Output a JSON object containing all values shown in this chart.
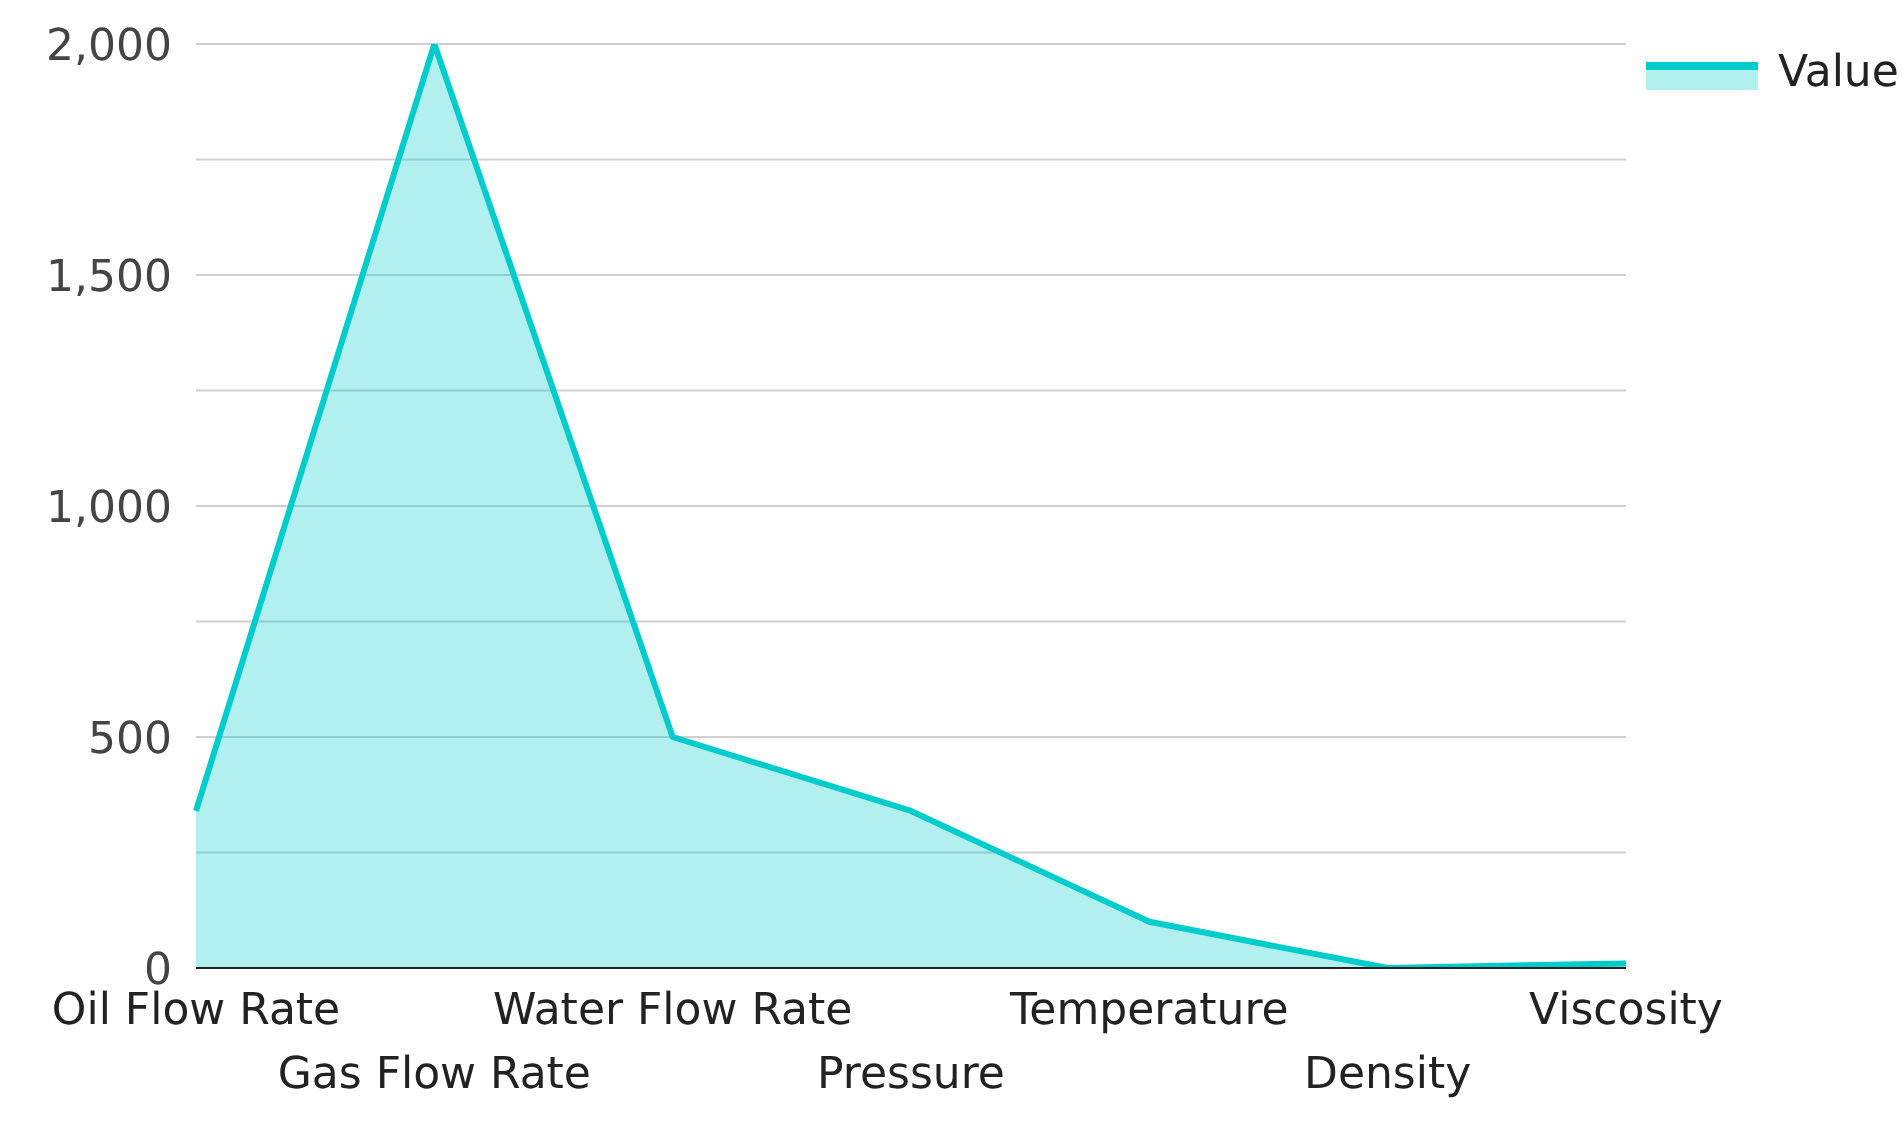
{
  "chart_data": {
    "type": "area",
    "categories": [
      "Oil Flow Rate",
      "Gas Flow Rate",
      "Water Flow Rate",
      "Pressure",
      "Temperature",
      "Density",
      "Viscosity"
    ],
    "series": [
      {
        "name": "Value",
        "color": "#00cccc",
        "values": [
          340,
          2000,
          500,
          340,
          100,
          0,
          10
        ]
      }
    ],
    "ylim": [
      0,
      2000
    ],
    "yticks": [
      0,
      {
        "value": 250,
        "label": null
      },
      500,
      {
        "value": 750,
        "label": null
      },
      {
        "value": 1000,
        "label": "1,000"
      },
      {
        "value": 1250,
        "label": null
      },
      {
        "value": 1500,
        "label": "1,500"
      },
      {
        "value": 1750,
        "label": null
      },
      {
        "value": 2000,
        "label": "2,000"
      }
    ],
    "grid": "y",
    "legend": "top right"
  }
}
